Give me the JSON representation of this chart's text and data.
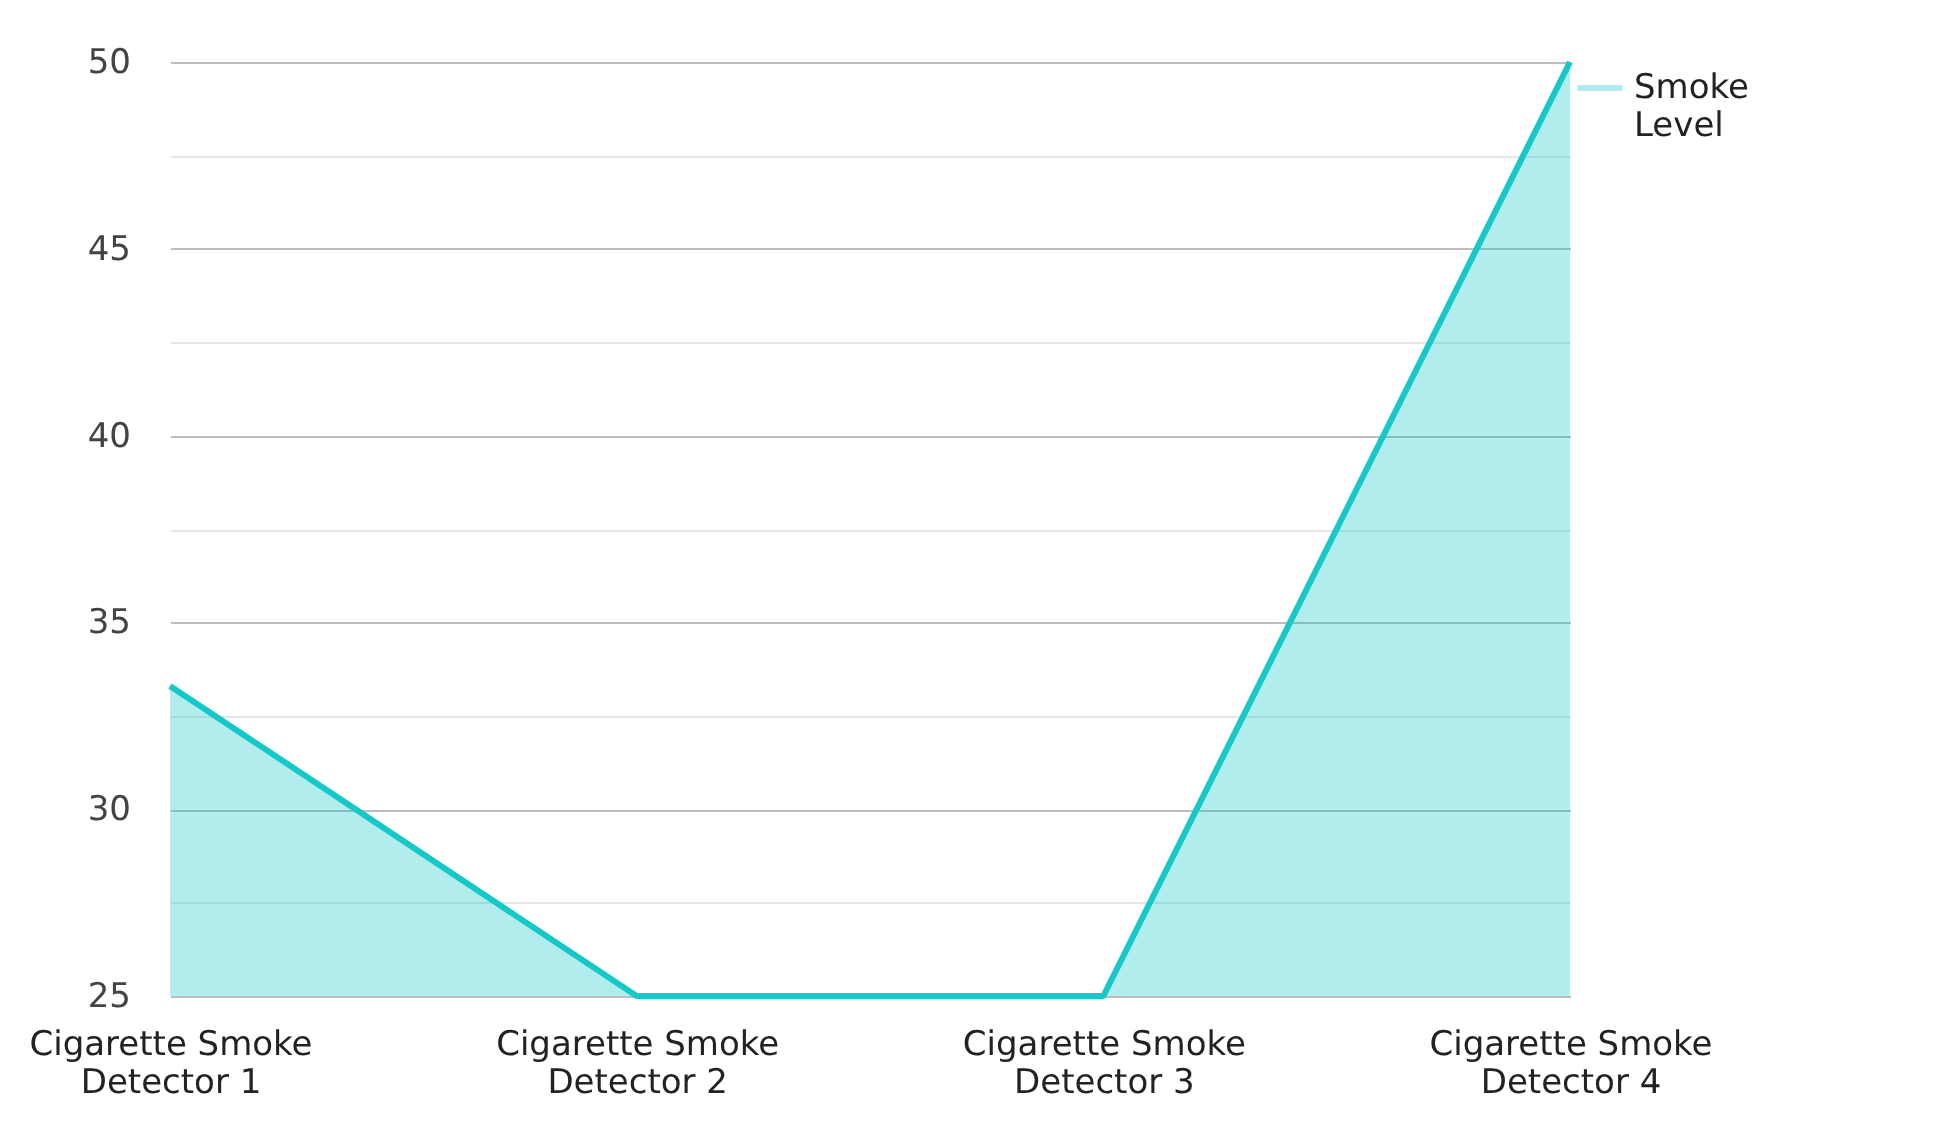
{
  "chart_data": {
    "type": "area",
    "categories": [
      "Cigarette Smoke Detector 1",
      "Cigarette Smoke Detector 2",
      "Cigarette Smoke Detector 3",
      "Cigarette Smoke Detector 4"
    ],
    "series": [
      {
        "name": "Smoke Level",
        "color": "#16c8c8",
        "values": [
          33.3,
          25,
          25,
          50
        ]
      }
    ],
    "ylim": [
      25,
      50
    ],
    "yticks": [
      25,
      {
        "value": 27.5,
        "label": null
      },
      30,
      {
        "value": 32.5,
        "label": null
      },
      35,
      {
        "value": 37.5,
        "label": null
      },
      40,
      {
        "value": 42.5,
        "label": null
      },
      45,
      {
        "value": 47.5,
        "label": null
      },
      50
    ],
    "grid": "y",
    "legend": "top right",
    "marker": "none",
    "line_style": "solid"
  }
}
